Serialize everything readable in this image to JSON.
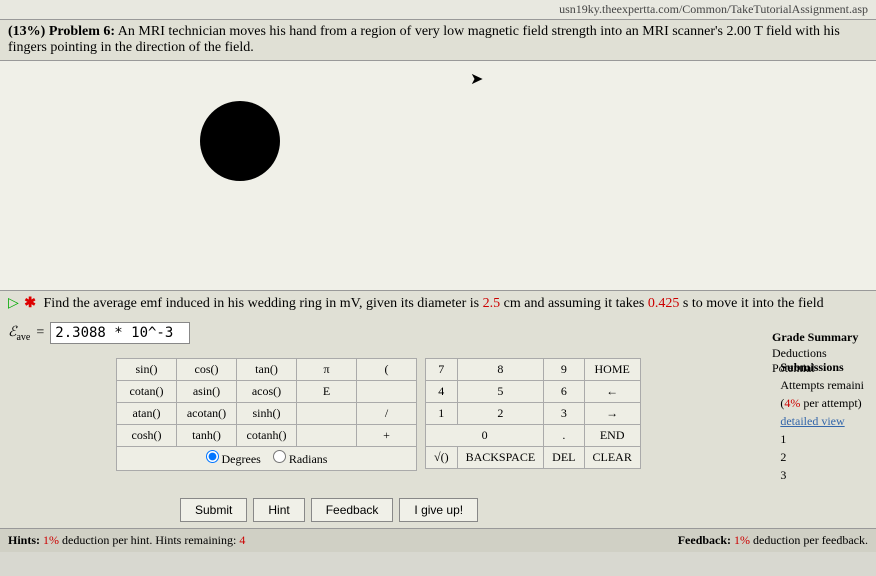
{
  "url": "usn19ky.theexpertta.com/Common/TakeTutorialAssignment.asp",
  "problem": {
    "percent": "(13%)",
    "label": "Problem 6:",
    "text1": "An MRI technician moves his hand from a region of very low magnetic field strength into an MRI scanner's 2.00 T field with his fingers pointing in the direction of the field."
  },
  "question": {
    "prefix": "Find the average emf induced in his wedding ring in mV, given its diameter is",
    "val1": "2.5",
    "mid": "cm and assuming it takes",
    "val2": "0.425",
    "suffix": "s to move it into the field"
  },
  "answer": {
    "lhs_sym": "ℰ",
    "lhs_sub": "ave",
    "eq": "=",
    "value": "2.3088 * 10^-3"
  },
  "grade": {
    "title": "Grade Summary",
    "l1": "Deductions",
    "l2": "Potential"
  },
  "func": {
    "r1": [
      "sin()",
      "cos()",
      "tan()",
      "π",
      "(",
      ")"
    ],
    "r2": [
      "cotan()",
      "asin()",
      "acos()",
      "E",
      "",
      ""
    ],
    "r3": [
      "atan()",
      "acotan()",
      "sinh()",
      "",
      "/",
      "*"
    ],
    "r4": [
      "cosh()",
      "tanh()",
      "cotanh()",
      "",
      "+",
      "-"
    ]
  },
  "num": {
    "r1": [
      "7",
      "8",
      "9",
      "HOME"
    ],
    "r2": [
      "4",
      "5",
      "6",
      "←"
    ],
    "r3": [
      "1",
      "2",
      "3",
      "→"
    ],
    "r4": [
      "0",
      ".",
      "END"
    ],
    "r5": [
      "√()",
      "BACKSPACE",
      "DEL",
      "CLEAR"
    ]
  },
  "mode": {
    "deg": "Degrees",
    "rad": "Radians"
  },
  "right": {
    "sub": "Submissions",
    "att": "Attempts remaini",
    "per": "(4% per attempt)",
    "det": "detailed view",
    "n1": "1",
    "n2": "2",
    "n3": "3"
  },
  "buttons": {
    "submit": "Submit",
    "hint": "Hint",
    "feedback": "Feedback",
    "giveup": "I give up!"
  },
  "footer": {
    "hints_label": "Hints:",
    "hints_pct": "1%",
    "hints_text": "deduction per hint. Hints remaining:",
    "hints_n": "4",
    "fb_label": "Feedback:",
    "fb_pct": "1%",
    "fb_text": "deduction per feedback."
  }
}
